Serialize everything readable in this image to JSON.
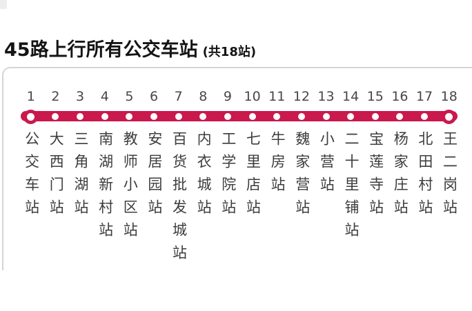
{
  "title": {
    "main": "45路上行所有公交车站",
    "count": "(共18站)"
  },
  "route": {
    "line_color": "#c9194d",
    "direction": "上行",
    "station_count": 18
  },
  "stations": [
    {
      "number": "1",
      "name": "公交车站",
      "terminal": true
    },
    {
      "number": "2",
      "name": "大西门站",
      "terminal": false
    },
    {
      "number": "3",
      "name": "三角湖站",
      "terminal": false
    },
    {
      "number": "4",
      "name": "南湖新村站",
      "terminal": false
    },
    {
      "number": "5",
      "name": "教师小区站",
      "terminal": false
    },
    {
      "number": "6",
      "name": "安居园站",
      "terminal": false
    },
    {
      "number": "7",
      "name": "百货批发城站",
      "terminal": false
    },
    {
      "number": "8",
      "name": "内衣城站",
      "terminal": false
    },
    {
      "number": "9",
      "name": "工学院站",
      "terminal": false
    },
    {
      "number": "10",
      "name": "七里店站",
      "terminal": false
    },
    {
      "number": "11",
      "name": "牛房站",
      "terminal": false
    },
    {
      "number": "12",
      "name": "魏家营站",
      "terminal": false
    },
    {
      "number": "13",
      "name": "小营站",
      "terminal": false
    },
    {
      "number": "14",
      "name": "二十里铺站",
      "terminal": false
    },
    {
      "number": "15",
      "name": "宝莲寺站",
      "terminal": false
    },
    {
      "number": "16",
      "name": "杨家庄站",
      "terminal": false
    },
    {
      "number": "17",
      "name": "北田村站",
      "terminal": false
    },
    {
      "number": "18",
      "name": "王二岗站",
      "terminal": true
    }
  ]
}
